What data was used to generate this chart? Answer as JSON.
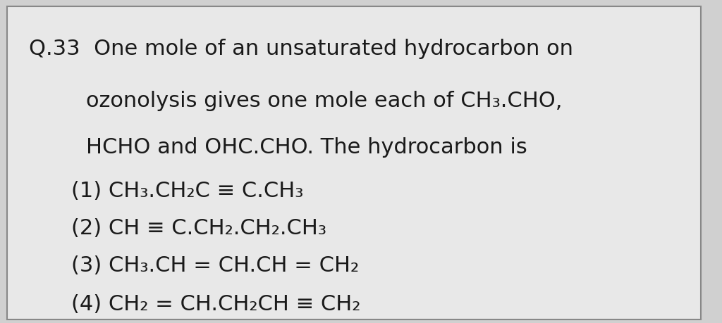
{
  "background_color": "#d0d0d0",
  "box_color": "#e8e8e8",
  "text_color": "#1a1a1a",
  "title_fontsize": 22,
  "body_fontsize": 22,
  "option_fontsize": 22,
  "question_prefix": "Q.33",
  "line1": "One mole of an unsaturated hydrocarbon on",
  "line2": "ozonolysis gives one mole each of CH₃.CHO,",
  "line3": "HCHO and OHC.CHO. The hydrocarbon is",
  "options": [
    "(1) CH₃.CH₂C ≡ C.CH₃",
    "(2) CH ≡ C.CH₂.CH₂.CH₃",
    "(3) CH₃.CH = CH.CH = CH₂",
    "(4) CH₂ = CH.CH₂CH ≡ CH₂"
  ]
}
